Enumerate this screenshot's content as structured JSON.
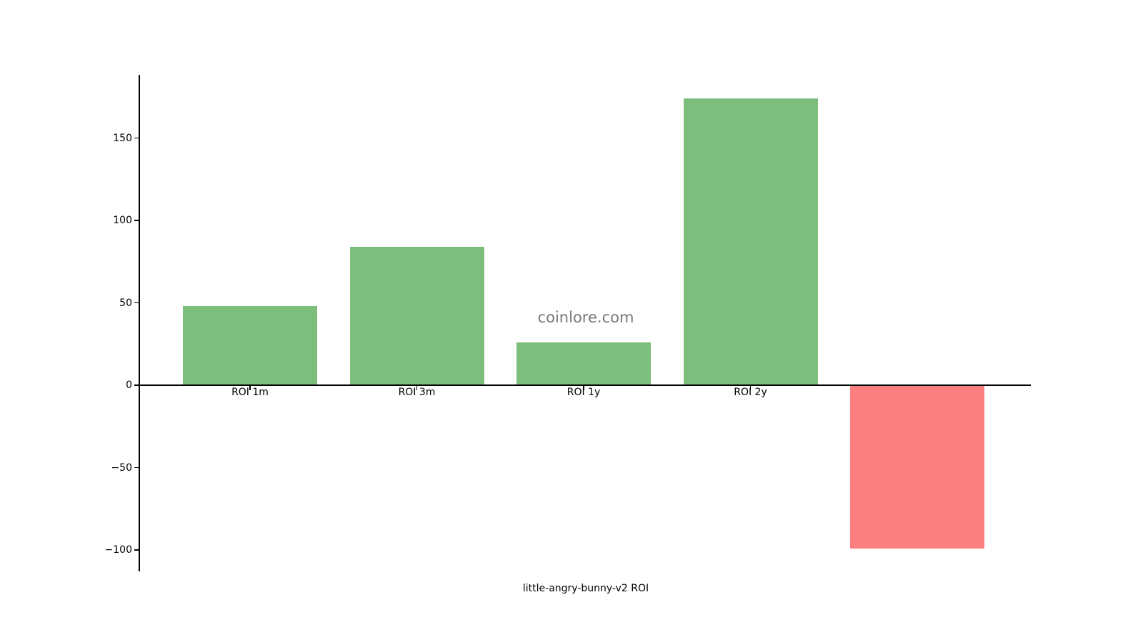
{
  "page": {
    "background_color": "#ffffff"
  },
  "watermark": {
    "text": "coinlore.com",
    "color": "#777777"
  },
  "chart_data": {
    "type": "bar",
    "title": "little-angry-bunny-v2 ROI",
    "title_position": "bottom",
    "categories": [
      "ROI 1m",
      "ROI 3m",
      "ROI 1y",
      "ROI 2y",
      ""
    ],
    "values": [
      48,
      84,
      26,
      174,
      -99
    ],
    "colors": {
      "positive_bar": "#7dbe7d",
      "negative_bar": "#fc7f7f",
      "axis": "#000000",
      "tick_label": "#000000",
      "title": "#000000"
    },
    "xlabel": "",
    "ylabel": "",
    "y_ticks": [
      {
        "label": "150",
        "value": 150
      },
      {
        "label": "100",
        "value": 100
      },
      {
        "label": "50",
        "value": 50
      },
      {
        "label": "0",
        "value": 0
      },
      {
        "label": "−50",
        "value": -50
      },
      {
        "label": "−100",
        "value": -100
      }
    ],
    "ylim": [
      -113,
      188
    ],
    "grid": false,
    "legend": null
  }
}
